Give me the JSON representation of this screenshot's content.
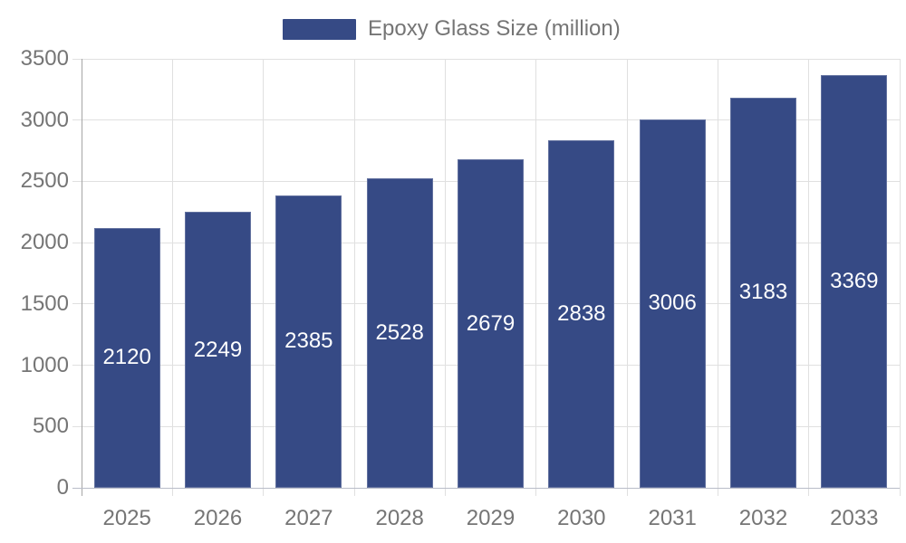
{
  "chart_data": {
    "type": "bar",
    "title": "Epoxy Glass Size (million)",
    "legend_label": "Epoxy Glass Size (million)",
    "legend_position": "top-center",
    "categories": [
      "2025",
      "2026",
      "2027",
      "2028",
      "2029",
      "2030",
      "2031",
      "2032",
      "2033"
    ],
    "series": [
      {
        "name": "Epoxy Glass Size (million)",
        "values": [
          2120,
          2249,
          2385,
          2528,
          2679,
          2838,
          3006,
          3183,
          3369
        ]
      }
    ],
    "xlabel": "",
    "ylabel": "",
    "ylim": [
      0,
      3500
    ],
    "yticks": [
      0,
      500,
      1000,
      1500,
      2000,
      2500,
      3000,
      3500
    ],
    "grid": true,
    "value_labels": "inside-center",
    "colors": {
      "bar": "#364a85",
      "bar_label": "#ffffff",
      "grid": "#e0e0e0",
      "y_axis_line": "#a6a6a6",
      "x_axis_line": "#b9bcc8",
      "tick_text": "#757575",
      "legend_text": "#757575",
      "background": "#ffffff"
    }
  }
}
